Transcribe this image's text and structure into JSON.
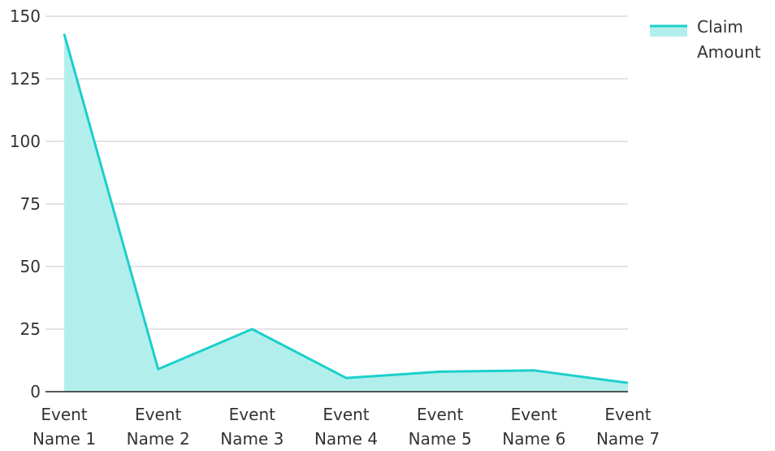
{
  "chart_data": {
    "type": "area",
    "categories": [
      "Event Name 1",
      "Event Name 2",
      "Event Name 3",
      "Event Name 4",
      "Event Name 5",
      "Event Name 6",
      "Event Name 7"
    ],
    "category_lines": [
      [
        "Event",
        "Name 1"
      ],
      [
        "Event",
        "Name 2"
      ],
      [
        "Event",
        "Name 3"
      ],
      [
        "Event",
        "Name 4"
      ],
      [
        "Event",
        "Name 5"
      ],
      [
        "Event",
        "Name 6"
      ],
      [
        "Event",
        "Name 7"
      ]
    ],
    "series": [
      {
        "name": "Claim Amount",
        "values": [
          143,
          9,
          25,
          5.5,
          8,
          8.5,
          3.5
        ]
      }
    ],
    "legend_lines": [
      "Claim",
      "Amount"
    ],
    "ylim": [
      0,
      150
    ],
    "yticks": [
      0,
      25,
      50,
      75,
      100,
      125,
      150
    ],
    "grid": true,
    "legend_position": "top-right",
    "colors": {
      "line": "#1ccfcb",
      "fill": "#b2efec",
      "grid": "#c8c8c8",
      "axis": "#222222"
    }
  }
}
